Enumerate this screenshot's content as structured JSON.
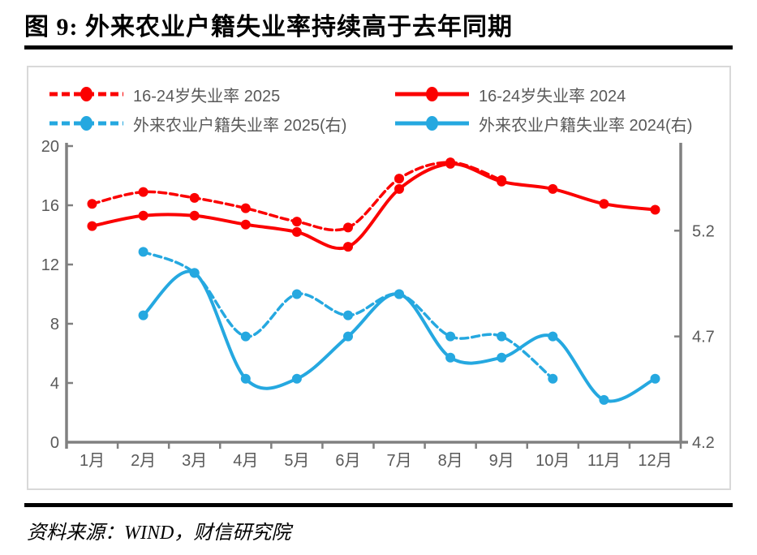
{
  "title": "图 9:  外来农业户籍失业率持续高于去年同期",
  "source": "资料来源：WIND，财信研究院",
  "colors": {
    "red": "#fb0000",
    "blue": "#25a8e0",
    "axis_line": "#808080",
    "axis_label": "#595959",
    "card_border": "#d9d9d9",
    "title_text": "#000000"
  },
  "chart_data": {
    "type": "line",
    "title": "外来农业户籍失业率持续高于去年同期",
    "categories": [
      "1月",
      "2月",
      "3月",
      "4月",
      "5月",
      "6月",
      "7月",
      "8月",
      "9月",
      "10月",
      "11月",
      "12月"
    ],
    "grid": false,
    "legend_position": "top",
    "axes": {
      "left": {
        "min": 0,
        "max": 20,
        "ticks": [
          "0",
          "4",
          "8",
          "12",
          "16",
          "20"
        ],
        "tick_values": [
          0,
          4,
          8,
          12,
          16,
          20
        ]
      },
      "right": {
        "min": 4.2,
        "max": 5.6,
        "ticks": [
          "4.2",
          "4.7",
          "5.2"
        ],
        "tick_values": [
          4.2,
          4.7,
          5.2
        ]
      }
    },
    "series": [
      {
        "name": "16-24岁失业率 2025",
        "axis": "left",
        "color": "#fb0000",
        "dashed": true,
        "values": [
          16.1,
          16.9,
          16.5,
          15.8,
          14.9,
          14.5,
          17.8,
          18.9,
          17.7,
          null,
          null,
          null
        ]
      },
      {
        "name": "16-24岁失业率 2024",
        "axis": "left",
        "color": "#fb0000",
        "dashed": false,
        "values": [
          14.6,
          15.3,
          15.3,
          14.7,
          14.2,
          13.2,
          17.1,
          18.8,
          17.6,
          17.1,
          16.1,
          15.7
        ]
      },
      {
        "name": "外来农业户籍失业率 2025(右)",
        "axis": "right",
        "color": "#25a8e0",
        "dashed": true,
        "values": [
          null,
          5.1,
          5.0,
          4.7,
          4.9,
          4.8,
          4.9,
          4.7,
          4.7,
          4.5,
          null,
          null
        ]
      },
      {
        "name": "外来农业户籍失业率 2024(右)",
        "axis": "right",
        "color": "#25a8e0",
        "dashed": false,
        "values": [
          null,
          4.8,
          5.0,
          4.5,
          4.5,
          4.7,
          4.9,
          4.6,
          4.6,
          4.7,
          4.4,
          4.5
        ]
      }
    ]
  }
}
